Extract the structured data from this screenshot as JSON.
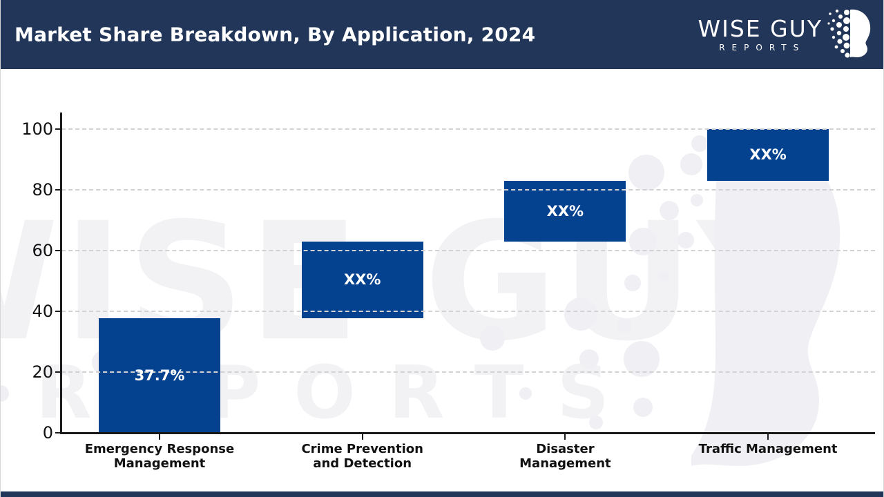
{
  "header": {
    "title": "Market Share Breakdown, By Application, 2024",
    "bg_color": "#223659",
    "logo": {
      "line1": "WISE GUY",
      "line2": "REPORTS"
    }
  },
  "watermark": {
    "line1": "WISE GUY",
    "line2": "R E P O R T S"
  },
  "footer": {
    "bg_color": "#223659"
  },
  "chart_data": {
    "type": "bar",
    "subtype": "waterfall",
    "title": "Market Share Breakdown, By Application, 2024",
    "xlabel": "",
    "ylabel": "",
    "ylim": [
      0,
      100
    ],
    "yticks": [
      0,
      20,
      40,
      60,
      80,
      100
    ],
    "grid": "horizontal-dashed",
    "legend": "none",
    "bar_color": "#04418f",
    "value_label_color": "#ffffff",
    "categories": [
      [
        "Emergency Response",
        "Management"
      ],
      [
        "Crime Prevention",
        "and Detection"
      ],
      [
        "Disaster",
        "Management"
      ],
      [
        "Traffic Management"
      ]
    ],
    "bars": [
      {
        "category": "Emergency Response Management",
        "start": 0,
        "end": 37.7,
        "label": "37.7%"
      },
      {
        "category": "Crime Prevention and Detection",
        "start": 37.7,
        "end": 63,
        "label": "XX%"
      },
      {
        "category": "Disaster Management",
        "start": 63,
        "end": 83,
        "label": "XX%"
      },
      {
        "category": "Traffic Management",
        "start": 83,
        "end": 100,
        "label": "XX%"
      }
    ]
  }
}
